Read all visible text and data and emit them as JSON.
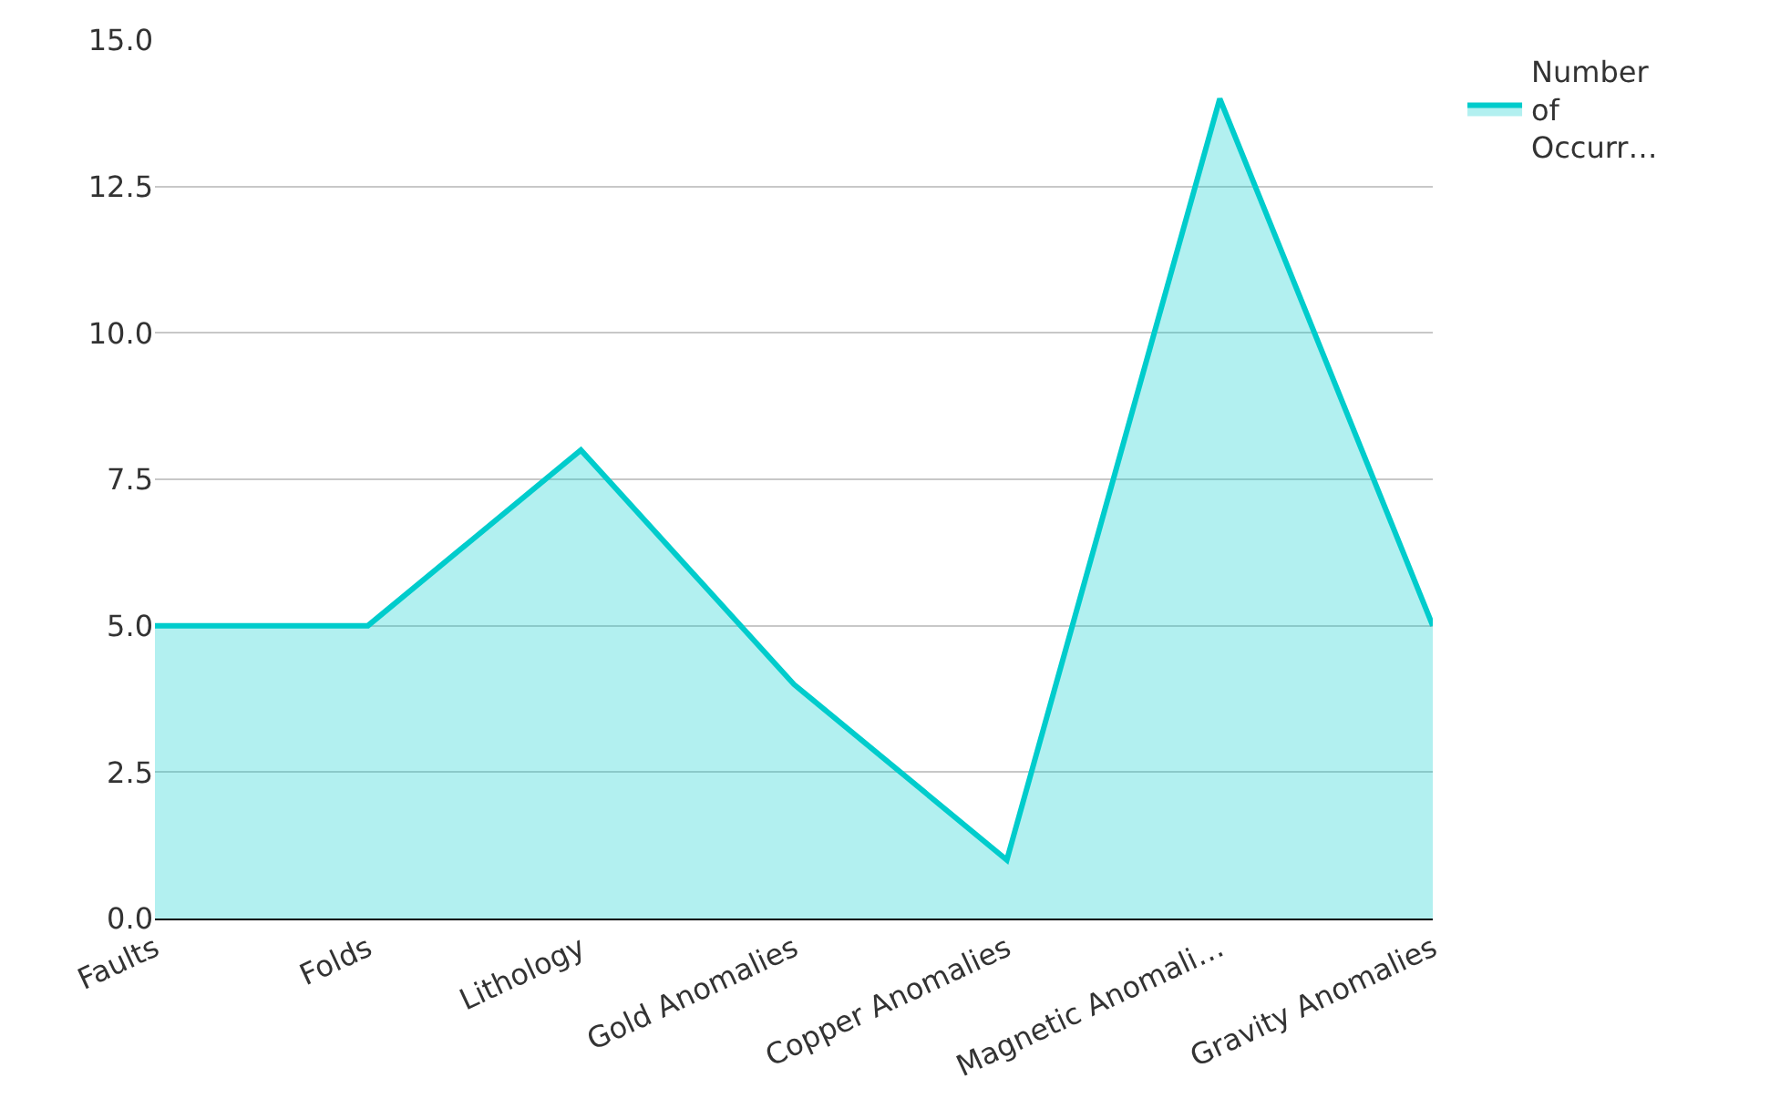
{
  "chart_data": {
    "type": "area",
    "categories": [
      "Faults",
      "Folds",
      "Lithology",
      "Gold Anomalies",
      "Copper Anomalies",
      "Magnetic Anomali…",
      "Gravity Anomalies"
    ],
    "series": [
      {
        "name": "Number of Occurr…",
        "color": "#00cccc",
        "values": [
          5,
          5,
          8,
          4,
          1,
          14,
          5
        ]
      }
    ],
    "ylim": [
      0,
      15
    ],
    "yticks": [
      {
        "value": 0,
        "label": "0.0"
      },
      {
        "value": 2.5,
        "label": "2.5"
      },
      {
        "value": 5,
        "label": "5.0"
      },
      {
        "value": 7.5,
        "label": "7.5"
      },
      {
        "value": 10,
        "label": "10.0"
      },
      {
        "value": 12.5,
        "label": "12.5"
      },
      {
        "value": 15,
        "label": "15.0"
      }
    ],
    "grid": "y",
    "legend": "top right"
  }
}
